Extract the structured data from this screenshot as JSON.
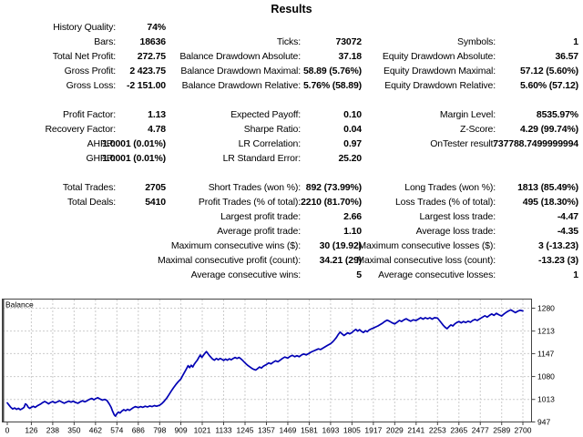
{
  "title": "Results",
  "report": {
    "rows": [
      {
        "cells": [
          "History Quality:",
          "74%",
          "",
          "",
          "",
          ""
        ]
      },
      {
        "cells": [
          "Bars:",
          "18636",
          "Ticks:",
          "73072",
          "Symbols:",
          "1"
        ]
      },
      {
        "cells": [
          "Total Net Profit:",
          "272.75",
          "Balance Drawdown Absolute:",
          "37.18",
          "Equity Drawdown Absolute:",
          "36.57"
        ]
      },
      {
        "cells": [
          "Gross Profit:",
          "2 423.75",
          "Balance Drawdown Maximal:",
          "58.89 (5.76%)",
          "Equity Drawdown Maximal:",
          "57.12 (5.60%)"
        ]
      },
      {
        "cells": [
          "Gross Loss:",
          "-2 151.00",
          "Balance Drawdown Relative:",
          "5.76% (58.89)",
          "Equity Drawdown Relative:",
          "5.60% (57.12)"
        ]
      },
      {
        "cells": [
          "",
          "",
          "",
          "",
          "",
          ""
        ]
      },
      {
        "cells": [
          "Profit Factor:",
          "1.13",
          "Expected Payoff:",
          "0.10",
          "Margin Level:",
          "8535.97%"
        ]
      },
      {
        "cells": [
          "Recovery Factor:",
          "4.78",
          "Sharpe Ratio:",
          "0.04",
          "Z-Score:",
          "4.29 (99.74%)"
        ]
      },
      {
        "cells": [
          "AHPR:",
          "1.0001 (0.01%)",
          "LR Correlation:",
          "0.97",
          "OnTester result:",
          "737788.7499999994"
        ]
      },
      {
        "cells": [
          "GHPR:",
          "1.0001 (0.01%)",
          "LR Standard Error:",
          "25.20",
          "",
          ""
        ]
      },
      {
        "cells": [
          "",
          "",
          "",
          "",
          "",
          ""
        ]
      },
      {
        "cells": [
          "Total Trades:",
          "2705",
          "Short Trades (won %):",
          "892 (73.99%)",
          "Long Trades (won %):",
          "1813 (85.49%)"
        ]
      },
      {
        "cells": [
          "Total Deals:",
          "5410",
          "Profit Trades (% of total):",
          "2210 (81.70%)",
          "Loss Trades (% of total):",
          "495 (18.30%)"
        ]
      },
      {
        "cells": [
          "",
          "",
          "Largest profit trade:",
          "2.66",
          "Largest loss trade:",
          "-4.47"
        ]
      },
      {
        "cells": [
          "",
          "",
          "Average profit trade:",
          "1.10",
          "Average loss trade:",
          "-4.35"
        ]
      },
      {
        "cells": [
          "",
          "",
          "Maximum consecutive wins ($):",
          "30 (19.92)",
          "Maximum consecutive losses ($):",
          "3 (-13.23)"
        ]
      },
      {
        "cells": [
          "",
          "",
          "Maximal consecutive profit (count):",
          "34.21 (29)",
          "Maximal consecutive loss (count):",
          "-13.23 (3)"
        ]
      },
      {
        "cells": [
          "",
          "",
          "Average consecutive wins:",
          "5",
          "Average consecutive losses:",
          "1"
        ]
      }
    ]
  },
  "chart_data": {
    "type": "line",
    "title": "Balance",
    "xlabel": "",
    "ylabel": "",
    "xlim": [
      0,
      2700
    ],
    "ylim": [
      947,
      1312
    ],
    "x_ticks": [
      0,
      126,
      238,
      350,
      462,
      574,
      686,
      798,
      909,
      1021,
      1133,
      1245,
      1357,
      1469,
      1581,
      1693,
      1805,
      1917,
      2029,
      2141,
      2253,
      2365,
      2477,
      2589,
      2700
    ],
    "y_ticks": [
      1280,
      1213,
      1147,
      1080,
      1013,
      947
    ],
    "grid": true,
    "legend_position": "top-left",
    "colors": {
      "line": "#0000b4",
      "grid": "#cbcbcb",
      "border": "#444444",
      "text": "#000000"
    },
    "series": [
      {
        "name": "Balance",
        "points": [
          [
            0,
            1003
          ],
          [
            8,
            997
          ],
          [
            18,
            990
          ],
          [
            28,
            985
          ],
          [
            38,
            988
          ],
          [
            48,
            984
          ],
          [
            58,
            987
          ],
          [
            68,
            983
          ],
          [
            78,
            986
          ],
          [
            88,
            990
          ],
          [
            95,
            1000
          ],
          [
            102,
            997
          ],
          [
            110,
            990
          ],
          [
            118,
            987
          ],
          [
            126,
            990
          ],
          [
            136,
            993
          ],
          [
            146,
            990
          ],
          [
            156,
            994
          ],
          [
            166,
            997
          ],
          [
            176,
            1000
          ],
          [
            186,
            1004
          ],
          [
            196,
            1007
          ],
          [
            206,
            1004
          ],
          [
            216,
            1000
          ],
          [
            226,
            1004
          ],
          [
            238,
            1007
          ],
          [
            250,
            1003
          ],
          [
            262,
            1006
          ],
          [
            274,
            1009
          ],
          [
            286,
            1005
          ],
          [
            298,
            1002
          ],
          [
            310,
            1005
          ],
          [
            322,
            1008
          ],
          [
            334,
            1005
          ],
          [
            346,
            1008
          ],
          [
            358,
            1004
          ],
          [
            370,
            1002
          ],
          [
            382,
            1006
          ],
          [
            394,
            1009
          ],
          [
            406,
            1006
          ],
          [
            418,
            1009
          ],
          [
            430,
            1013
          ],
          [
            442,
            1016
          ],
          [
            454,
            1012
          ],
          [
            462,
            1015
          ],
          [
            474,
            1018
          ],
          [
            486,
            1014
          ],
          [
            498,
            1011
          ],
          [
            510,
            1013
          ],
          [
            522,
            1010
          ],
          [
            534,
            1000
          ],
          [
            544,
            990
          ],
          [
            552,
            978
          ],
          [
            560,
            968
          ],
          [
            566,
            964
          ],
          [
            574,
            971
          ],
          [
            582,
            976
          ],
          [
            590,
            973
          ],
          [
            600,
            979
          ],
          [
            610,
            983
          ],
          [
            620,
            980
          ],
          [
            630,
            984
          ],
          [
            640,
            981
          ],
          [
            650,
            985
          ],
          [
            660,
            989
          ],
          [
            670,
            992
          ],
          [
            686,
            989
          ],
          [
            698,
            992
          ],
          [
            710,
            990
          ],
          [
            722,
            993
          ],
          [
            734,
            991
          ],
          [
            746,
            994
          ],
          [
            758,
            992
          ],
          [
            770,
            995
          ],
          [
            782,
            993
          ],
          [
            798,
            996
          ],
          [
            810,
            1001
          ],
          [
            822,
            1008
          ],
          [
            834,
            1016
          ],
          [
            846,
            1026
          ],
          [
            858,
            1037
          ],
          [
            870,
            1047
          ],
          [
            882,
            1056
          ],
          [
            894,
            1064
          ],
          [
            909,
            1073
          ],
          [
            919,
            1083
          ],
          [
            929,
            1093
          ],
          [
            939,
            1103
          ],
          [
            947,
            1112
          ],
          [
            955,
            1106
          ],
          [
            963,
            1113
          ],
          [
            971,
            1108
          ],
          [
            979,
            1116
          ],
          [
            987,
            1122
          ],
          [
            995,
            1128
          ],
          [
            1003,
            1136
          ],
          [
            1011,
            1143
          ],
          [
            1019,
            1136
          ],
          [
            1027,
            1142
          ],
          [
            1035,
            1148
          ],
          [
            1043,
            1153
          ],
          [
            1051,
            1147
          ],
          [
            1059,
            1141
          ],
          [
            1067,
            1136
          ],
          [
            1075,
            1131
          ],
          [
            1085,
            1128
          ],
          [
            1095,
            1133
          ],
          [
            1105,
            1129
          ],
          [
            1115,
            1133
          ],
          [
            1125,
            1130
          ],
          [
            1133,
            1127
          ],
          [
            1143,
            1131
          ],
          [
            1153,
            1128
          ],
          [
            1163,
            1132
          ],
          [
            1173,
            1129
          ],
          [
            1183,
            1133
          ],
          [
            1193,
            1136
          ],
          [
            1203,
            1133
          ],
          [
            1213,
            1136
          ],
          [
            1221,
            1133
          ],
          [
            1231,
            1128
          ],
          [
            1241,
            1122
          ],
          [
            1251,
            1117
          ],
          [
            1261,
            1112
          ],
          [
            1271,
            1108
          ],
          [
            1281,
            1104
          ],
          [
            1291,
            1101
          ],
          [
            1301,
            1099
          ],
          [
            1311,
            1103
          ],
          [
            1321,
            1108
          ],
          [
            1331,
            1105
          ],
          [
            1341,
            1110
          ],
          [
            1357,
            1115
          ],
          [
            1369,
            1120
          ],
          [
            1381,
            1117
          ],
          [
            1393,
            1122
          ],
          [
            1405,
            1126
          ],
          [
            1417,
            1123
          ],
          [
            1429,
            1128
          ],
          [
            1441,
            1133
          ],
          [
            1453,
            1137
          ],
          [
            1469,
            1134
          ],
          [
            1481,
            1139
          ],
          [
            1493,
            1142
          ],
          [
            1505,
            1138
          ],
          [
            1517,
            1141
          ],
          [
            1529,
            1138
          ],
          [
            1541,
            1143
          ],
          [
            1553,
            1146
          ],
          [
            1565,
            1143
          ],
          [
            1581,
            1148
          ],
          [
            1593,
            1152
          ],
          [
            1605,
            1155
          ],
          [
            1617,
            1158
          ],
          [
            1629,
            1161
          ],
          [
            1641,
            1159
          ],
          [
            1653,
            1163
          ],
          [
            1665,
            1167
          ],
          [
            1677,
            1171
          ],
          [
            1693,
            1176
          ],
          [
            1703,
            1181
          ],
          [
            1713,
            1187
          ],
          [
            1723,
            1194
          ],
          [
            1733,
            1203
          ],
          [
            1743,
            1210
          ],
          [
            1753,
            1205
          ],
          [
            1763,
            1200
          ],
          [
            1773,
            1204
          ],
          [
            1783,
            1208
          ],
          [
            1793,
            1205
          ],
          [
            1805,
            1209
          ],
          [
            1815,
            1214
          ],
          [
            1825,
            1218
          ],
          [
            1835,
            1213
          ],
          [
            1845,
            1217
          ],
          [
            1855,
            1212
          ],
          [
            1865,
            1209
          ],
          [
            1875,
            1214
          ],
          [
            1885,
            1211
          ],
          [
            1895,
            1216
          ],
          [
            1905,
            1219
          ],
          [
            1917,
            1222
          ],
          [
            1929,
            1225
          ],
          [
            1941,
            1228
          ],
          [
            1953,
            1232
          ],
          [
            1965,
            1236
          ],
          [
            1977,
            1241
          ],
          [
            1989,
            1245
          ],
          [
            2001,
            1242
          ],
          [
            2013,
            1238
          ],
          [
            2029,
            1234
          ],
          [
            2041,
            1239
          ],
          [
            2053,
            1244
          ],
          [
            2065,
            1241
          ],
          [
            2077,
            1246
          ],
          [
            2089,
            1249
          ],
          [
            2101,
            1245
          ],
          [
            2113,
            1242
          ],
          [
            2125,
            1246
          ],
          [
            2141,
            1244
          ],
          [
            2153,
            1248
          ],
          [
            2165,
            1252
          ],
          [
            2177,
            1248
          ],
          [
            2189,
            1252
          ],
          [
            2201,
            1249
          ],
          [
            2213,
            1252
          ],
          [
            2225,
            1248
          ],
          [
            2237,
            1252
          ],
          [
            2253,
            1251
          ],
          [
            2263,
            1244
          ],
          [
            2273,
            1237
          ],
          [
            2283,
            1230
          ],
          [
            2293,
            1224
          ],
          [
            2303,
            1220
          ],
          [
            2313,
            1226
          ],
          [
            2323,
            1231
          ],
          [
            2333,
            1228
          ],
          [
            2343,
            1234
          ],
          [
            2353,
            1238
          ],
          [
            2365,
            1241
          ],
          [
            2377,
            1237
          ],
          [
            2389,
            1241
          ],
          [
            2401,
            1238
          ],
          [
            2413,
            1242
          ],
          [
            2425,
            1239
          ],
          [
            2437,
            1244
          ],
          [
            2449,
            1247
          ],
          [
            2461,
            1244
          ],
          [
            2477,
            1250
          ],
          [
            2489,
            1254
          ],
          [
            2501,
            1258
          ],
          [
            2513,
            1254
          ],
          [
            2525,
            1259
          ],
          [
            2537,
            1263
          ],
          [
            2549,
            1259
          ],
          [
            2561,
            1265
          ],
          [
            2573,
            1261
          ],
          [
            2589,
            1257
          ],
          [
            2601,
            1263
          ],
          [
            2613,
            1268
          ],
          [
            2625,
            1272
          ],
          [
            2637,
            1275
          ],
          [
            2649,
            1271
          ],
          [
            2661,
            1267
          ],
          [
            2673,
            1271
          ],
          [
            2685,
            1274
          ],
          [
            2700,
            1272
          ]
        ]
      }
    ]
  }
}
